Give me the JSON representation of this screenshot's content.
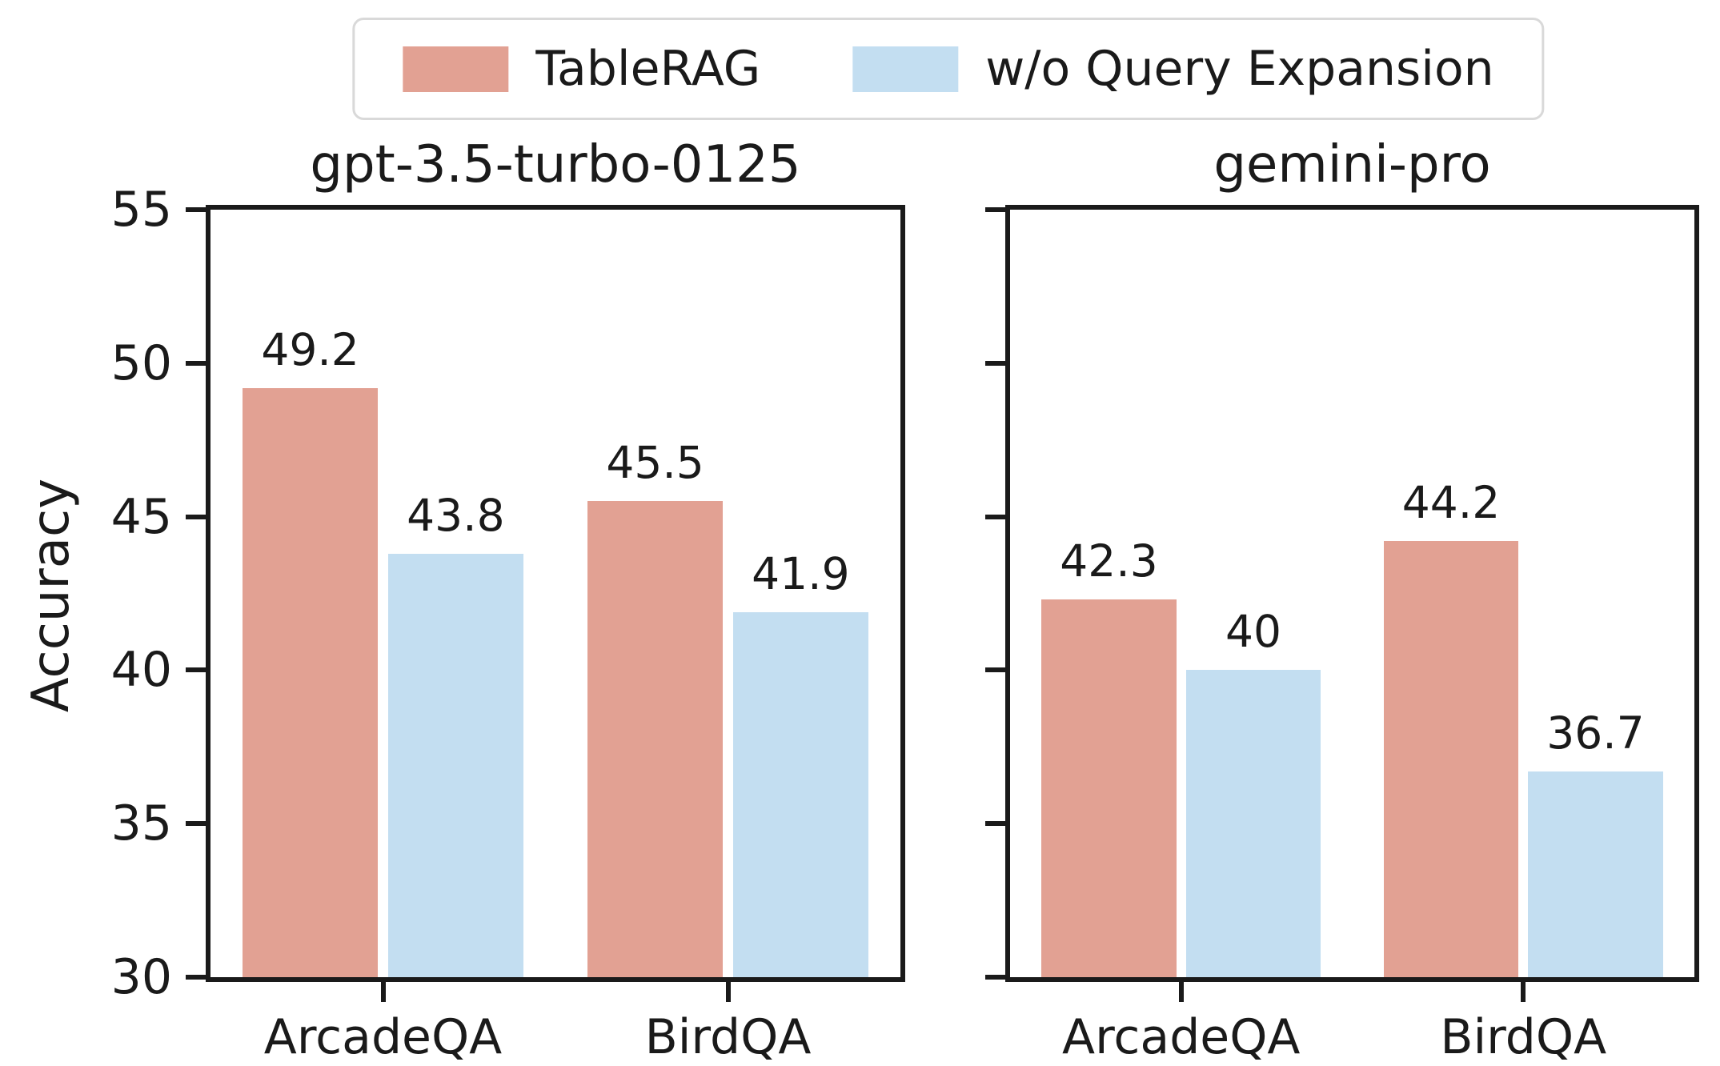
{
  "figure": {
    "background": "#ffffff",
    "text_color": "#1a1a1a",
    "axis_color": "#1a1a1a"
  },
  "legend": {
    "position": "top-center",
    "items": [
      {
        "label": "TableRAG",
        "color": "#e2a193"
      },
      {
        "label": "w/o Query Expansion",
        "color": "#c3def1"
      }
    ]
  },
  "chart_data": [
    {
      "type": "bar",
      "title": "gpt-3.5-turbo-0125",
      "categories": [
        "ArcadeQA",
        "BirdQA"
      ],
      "series": [
        {
          "name": "TableRAG",
          "values": [
            49.2,
            45.5
          ]
        },
        {
          "name": "w/o Query Expansion",
          "values": [
            43.8,
            41.9
          ]
        }
      ],
      "xlabel": "",
      "ylabel": "Accuracy",
      "ylim": [
        30,
        55
      ],
      "yticks": [
        30,
        35,
        40,
        45,
        50,
        55
      ],
      "show_ytick_labels": true,
      "grid": false,
      "value_labels": true
    },
    {
      "type": "bar",
      "title": "gemini-pro",
      "categories": [
        "ArcadeQA",
        "BirdQA"
      ],
      "series": [
        {
          "name": "TableRAG",
          "values": [
            42.3,
            44.2
          ]
        },
        {
          "name": "w/o Query Expansion",
          "values": [
            40,
            36.7
          ]
        }
      ],
      "xlabel": "",
      "ylabel": "",
      "ylim": [
        30,
        55
      ],
      "yticks": [
        30,
        35,
        40,
        45,
        50,
        55
      ],
      "show_ytick_labels": false,
      "grid": false,
      "value_labels": true
    }
  ]
}
